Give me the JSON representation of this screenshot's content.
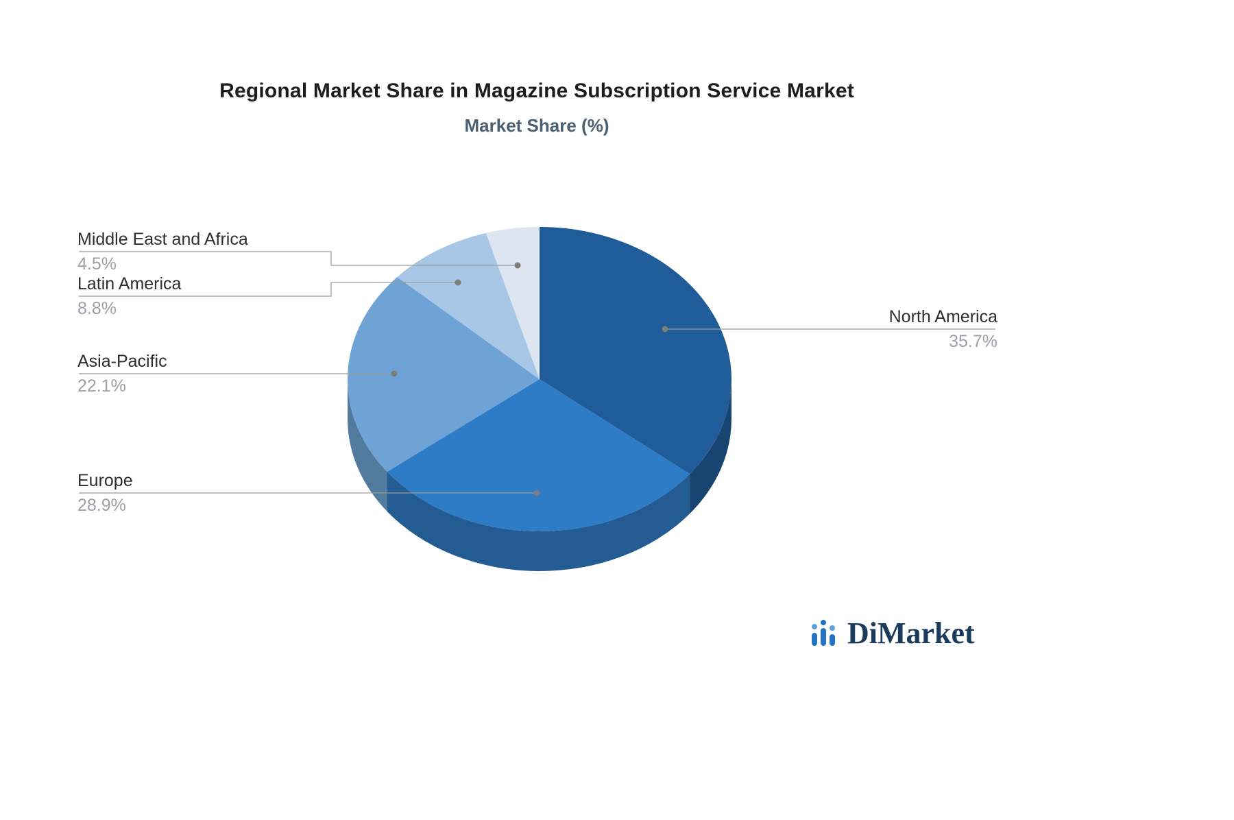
{
  "title": "Regional Market Share in Magazine Subscription Service Market",
  "subtitle": "Market Share (%)",
  "brand": {
    "name": "DiMarket"
  },
  "chart_data": {
    "type": "pie",
    "style": "3d-pie",
    "title": "Regional Market Share in Magazine Subscription Service Market",
    "subtitle": "Market Share (%)",
    "unit": "%",
    "legend_position": "labels-with-leader-lines",
    "start_angle_deg": 0,
    "direction": "clockwise",
    "categories": [
      "North America",
      "Europe",
      "Asia-Pacific",
      "Latin America",
      "Middle East and Africa"
    ],
    "values": [
      35.7,
      28.9,
      22.1,
      8.8,
      4.5
    ],
    "slices": [
      {
        "name": "North America",
        "value": 35.7,
        "label": "35.7%",
        "color": "#1F5C99"
      },
      {
        "name": "Europe",
        "value": 28.9,
        "label": "28.9%",
        "color": "#2E7CC5"
      },
      {
        "name": "Asia-Pacific",
        "value": 22.1,
        "label": "22.1%",
        "color": "#6FA3D6"
      },
      {
        "name": "Latin America",
        "value": 8.8,
        "label": "8.8%",
        "color": "#A8C7E6"
      },
      {
        "name": "Middle East and Africa",
        "value": 4.5,
        "label": "4.5%",
        "color": "#DDE5F0"
      }
    ]
  }
}
